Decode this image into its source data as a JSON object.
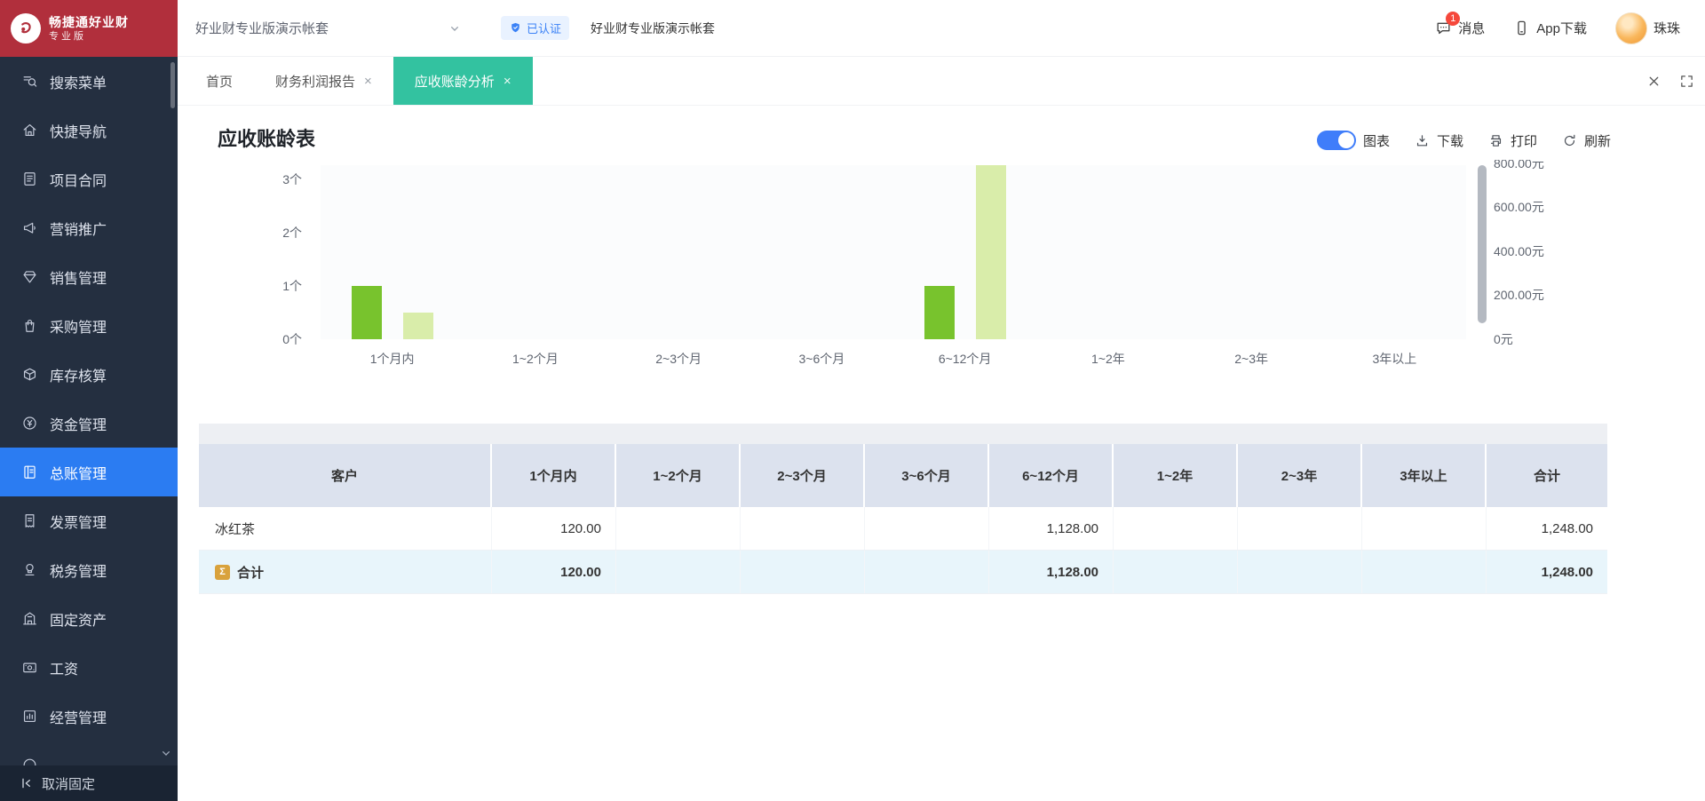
{
  "colors": {
    "brand_red": "#b12f3c",
    "sidebar_bg": "#242f40",
    "sidebar_active_bg": "#2b7cf2",
    "tab_active_bg": "#33c2a0",
    "toggle_on": "#3f7dfa",
    "bar_count_color": "#78c32d",
    "bar_amount_color": "#d9edaa",
    "table_header_bg": "#dce2ee",
    "table_total_bg": "#e8f5fb",
    "badge_red": "#f5483b",
    "certified_blue": "#3b82f6"
  },
  "app": {
    "brand_line1": "畅捷通好业财",
    "brand_line2": "专业版"
  },
  "sidebar": {
    "items": [
      {
        "label": "搜索菜单",
        "icon": "search",
        "active": false
      },
      {
        "label": "快捷导航",
        "icon": "home",
        "active": false
      },
      {
        "label": "项目合同",
        "icon": "contract",
        "active": false
      },
      {
        "label": "营销推广",
        "icon": "promo",
        "active": false
      },
      {
        "label": "销售管理",
        "icon": "sales",
        "active": false
      },
      {
        "label": "采购管理",
        "icon": "purchase",
        "active": false
      },
      {
        "label": "库存核算",
        "icon": "inventory",
        "active": false
      },
      {
        "label": "资金管理",
        "icon": "funds",
        "active": false
      },
      {
        "label": "总账管理",
        "icon": "ledger",
        "active": true
      },
      {
        "label": "发票管理",
        "icon": "invoice",
        "active": false
      },
      {
        "label": "税务管理",
        "icon": "tax",
        "active": false
      },
      {
        "label": "固定资产",
        "icon": "assets",
        "active": false
      },
      {
        "label": "工资",
        "icon": "salary",
        "active": false
      },
      {
        "label": "经营管理",
        "icon": "business",
        "active": false
      },
      {
        "label": "",
        "icon": "circle",
        "active": false,
        "partial": true
      }
    ],
    "unpin_label": "取消固定"
  },
  "topbar": {
    "account_selector": "好业财专业版演示帐套",
    "certified_label": "已认证",
    "account_name": "好业财专业版演示帐套",
    "messages_label": "消息",
    "messages_badge": "1",
    "app_download_label": "App下载",
    "user_name": "珠珠"
  },
  "tab_bar": {
    "tabs": [
      {
        "label": "首页",
        "closable": false,
        "active": false
      },
      {
        "label": "财务利润报告",
        "closable": true,
        "active": false
      },
      {
        "label": "应收账龄分析",
        "closable": true,
        "active": true
      }
    ]
  },
  "report": {
    "title": "应收账龄表",
    "toolbar": {
      "chart_toggle_label": "图表",
      "chart_toggle_on": true,
      "download_label": "下载",
      "print_label": "打印",
      "refresh_label": "刷新"
    }
  },
  "chart_data": {
    "type": "bar",
    "categories": [
      "1个月内",
      "1~2个月",
      "2~3个月",
      "3~6个月",
      "6~12个月",
      "1~2年",
      "2~3年",
      "3年以上"
    ],
    "series": [
      {
        "id": "count",
        "axis": "left",
        "unit": "个",
        "color": "#78c32d",
        "values": [
          1,
          0,
          0,
          0,
          1,
          0,
          0,
          0
        ]
      },
      {
        "id": "amount",
        "axis": "right",
        "unit": "元",
        "color": "#d9edaa",
        "values": [
          120.0,
          0,
          0,
          0,
          1128.0,
          0,
          0,
          0
        ]
      }
    ],
    "left_axis": {
      "ticks": [
        "0个",
        "1个",
        "2个",
        "3个"
      ],
      "value_per_tick": 1
    },
    "right_axis": {
      "ticks": [
        "0元",
        "200.00元",
        "400.00元",
        "600.00元",
        "800.00元"
      ],
      "value_per_tick": 200,
      "top_tick_clipped": true
    },
    "grid": false,
    "legend": false,
    "top_of_chart_clipped": true
  },
  "table": {
    "columns": [
      "客户",
      "1个月内",
      "1~2个月",
      "2~3个月",
      "3~6个月",
      "6~12个月",
      "1~2年",
      "2~3年",
      "3年以上",
      "合计"
    ],
    "rows": [
      {
        "customer": "冰红茶",
        "values": [
          "120.00",
          "",
          "",
          "",
          "1,128.00",
          "",
          "",
          "",
          "1,248.00"
        ]
      }
    ],
    "total": {
      "label": "合计",
      "values": [
        "120.00",
        "",
        "",
        "",
        "1,128.00",
        "",
        "",
        "",
        "1,248.00"
      ]
    }
  }
}
